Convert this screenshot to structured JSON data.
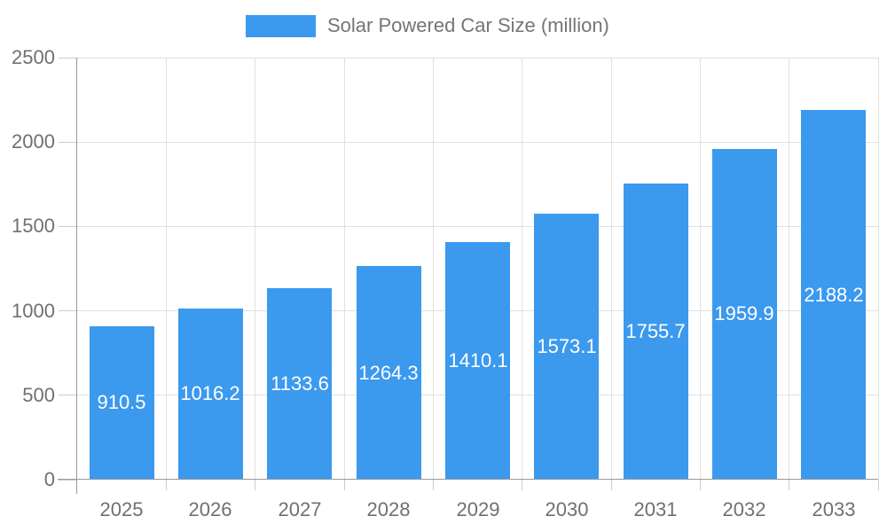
{
  "legend": {
    "label": "Solar Powered Car Size (million)"
  },
  "colors": {
    "bar": "#3B99EE",
    "axis_line": "#999999",
    "gridline": "#E0E0E0",
    "tick": "#CCCCCC",
    "axis_text": "#707070",
    "legend_text": "#757575",
    "value_label_text": "#FFFFFF",
    "background": "#FFFFFF"
  },
  "chart_data": {
    "type": "bar",
    "title": "Solar Powered Car Size (million)",
    "series_name": "Solar Powered Car Size (million)",
    "categories": [
      "2025",
      "2026",
      "2027",
      "2028",
      "2029",
      "2030",
      "2031",
      "2032",
      "2033"
    ],
    "values": [
      910.5,
      1016.2,
      1133.6,
      1264.3,
      1410.1,
      1573.1,
      1755.7,
      1959.9,
      2188.2
    ],
    "value_labels": [
      "910.5",
      "1016.2",
      "1133.6",
      "1264.3",
      "1410.1",
      "1573.1",
      "1755.7",
      "1959.9",
      "2188.2"
    ],
    "xlabel": "",
    "ylabel": "",
    "ylim": [
      0,
      2500
    ],
    "yticks": [
      0,
      500,
      1000,
      1500,
      2000,
      2500
    ],
    "grid": true,
    "legend_position": "top-center",
    "value_label_position": "inside-center"
  }
}
